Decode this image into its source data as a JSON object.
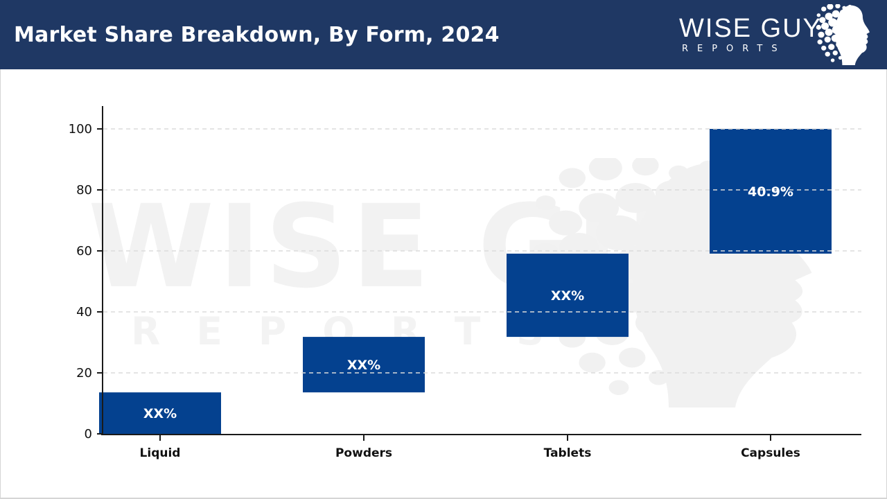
{
  "header": {
    "title": "Market Share Breakdown, By Form, 2024"
  },
  "brand": {
    "name": "WISE GUY",
    "subtitle": "REPORTS"
  },
  "watermark": {
    "line1": "WISE GUY",
    "line2": "REPORTS"
  },
  "colors": {
    "header_bg": "#1F3864",
    "bar": "#04418F",
    "grid": "#DCDCDC",
    "axis": "#1A1A1A",
    "tick_text": "#111111",
    "bar_label_text": "#FFFFFF",
    "watermark": "#F1F1F1"
  },
  "chart_data": {
    "type": "bar",
    "subtype": "floating-waterfall",
    "title": "Market Share Breakdown, By Form, 2024",
    "categories": [
      "Liquid",
      "Powders",
      "Tablets",
      "Capsules"
    ],
    "segments": [
      {
        "category": "Liquid",
        "start": 0,
        "end": 13.6,
        "label": "XX%"
      },
      {
        "category": "Powders",
        "start": 13.6,
        "end": 31.8,
        "label": "XX%"
      },
      {
        "category": "Tablets",
        "start": 31.8,
        "end": 59.1,
        "label": "XX%"
      },
      {
        "category": "Capsules",
        "start": 59.1,
        "end": 100,
        "label": "40.9%"
      }
    ],
    "xlabel": "",
    "ylabel": "",
    "ylim": [
      0,
      100
    ],
    "yticks": [
      0,
      20,
      40,
      60,
      80,
      100
    ],
    "grid": "horizontal-dashed-over-bars",
    "legend": "none"
  }
}
